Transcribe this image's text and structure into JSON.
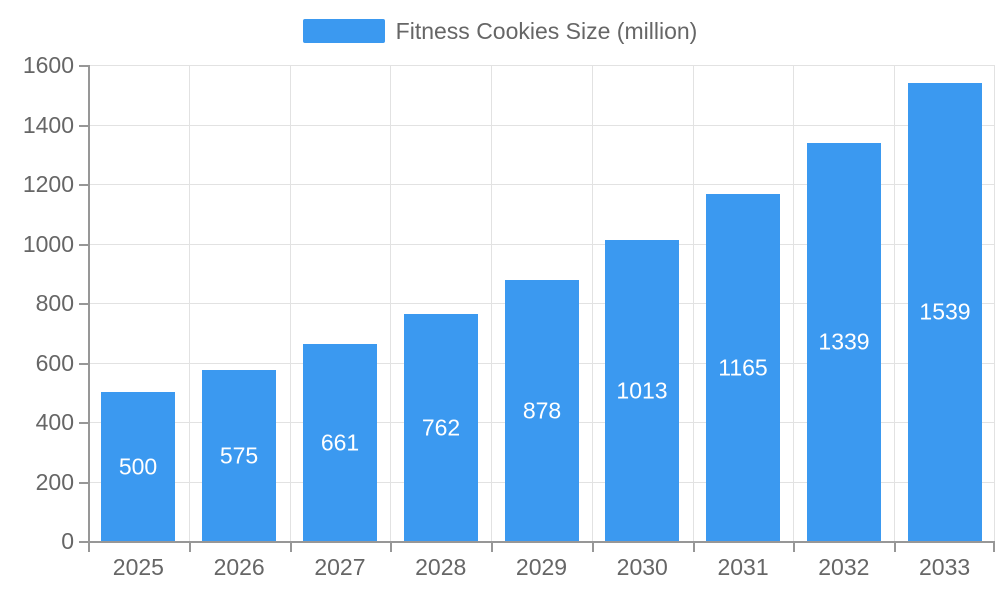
{
  "legend": {
    "swatch_icon": "blue-rect-swatch",
    "label": "Fitness Cookies Size (million)"
  },
  "chart_data": {
    "type": "bar",
    "title": "Fitness Cookies Size (million)",
    "categories": [
      "2025",
      "2026",
      "2027",
      "2028",
      "2029",
      "2030",
      "2031",
      "2032",
      "2033"
    ],
    "values": [
      500,
      575,
      661,
      762,
      878,
      1013,
      1165,
      1339,
      1539
    ],
    "xlabel": "",
    "ylabel": "",
    "ylim": [
      0,
      1600
    ],
    "y_ticks": [
      0,
      200,
      400,
      600,
      800,
      1000,
      1200,
      1400,
      1600
    ],
    "grid": true,
    "legend_position": "top-center",
    "bar_labels_inside": true,
    "colors": {
      "bar": "#3B99F0",
      "bar_label_text": "#ffffff",
      "axis_line": "#979797",
      "grid_line": "#e2e2e2",
      "tick_label_text": "#666666"
    }
  }
}
